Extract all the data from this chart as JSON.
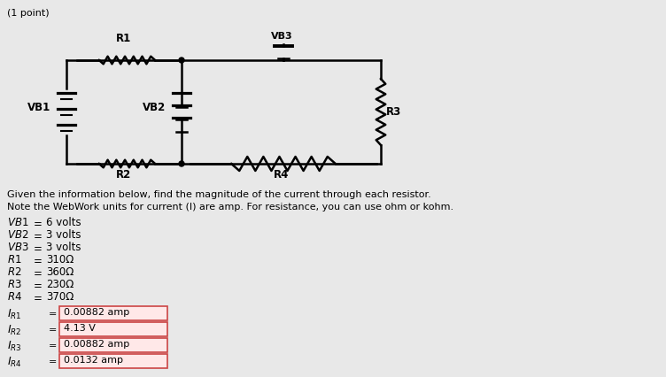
{
  "background_color": "#e8e8e8",
  "point_label": "(1 point)",
  "circuit": {
    "VB1_label": "VB1",
    "VB2_label": "VB2",
    "VB3_label": "VB3",
    "R1_label": "R1",
    "R2_label": "R2",
    "R3_label": "R3",
    "R4_label": "R4"
  },
  "description_line1": "Given the information below, find the magnitude of the current through each resistor.",
  "description_line2": "Note the WebWork units for current (I) are amp. For resistance, you can use ohm or kohm.",
  "given_texts": [
    "VB1 = 6 volts",
    "VB2 = 3 volts",
    "VB3 = 3 volts",
    "R1 = 310Ω",
    "R2 = 360Ω",
    "R3 = 230Ω",
    "R4 = 370Ω"
  ],
  "answer_labels": [
    "I_{R1}",
    "I_{R2}",
    "I_{R3}",
    "I_{R4}"
  ],
  "answer_values": [
    "0.00882 amp",
    "4.13 V",
    "0.00882 amp",
    "0.0132 amp"
  ],
  "box_facecolor": "#ffe8e8",
  "box_edgecolor": "#cc4444"
}
